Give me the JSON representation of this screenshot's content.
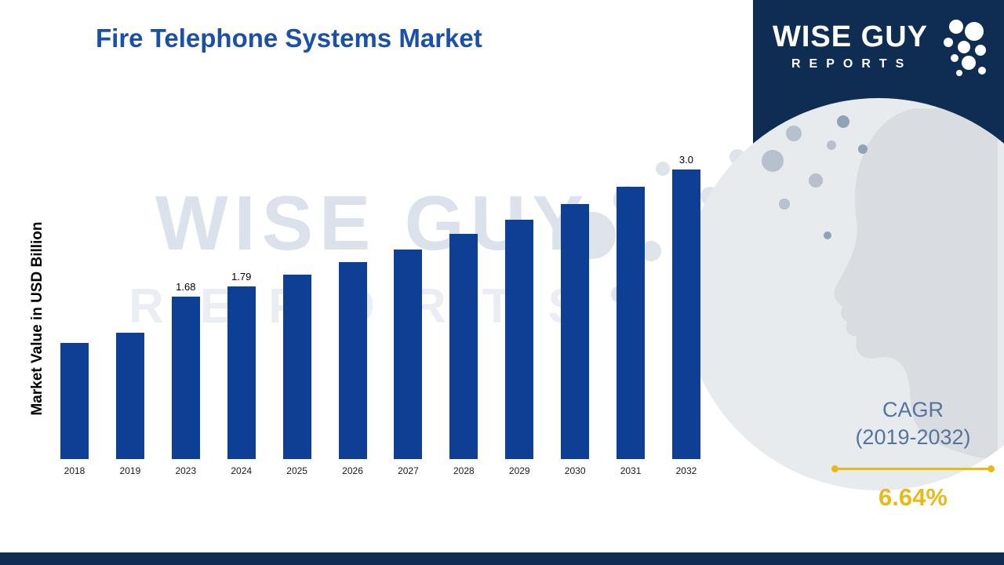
{
  "title": "Fire Telephone Systems Market",
  "logo": {
    "line1": "WISE GUY",
    "line2": "REPORTS"
  },
  "watermark": {
    "line1": "WISE GUY",
    "line2": "REPORTS"
  },
  "cagr": {
    "label": "CAGR",
    "range": "(2019-2032)",
    "value": "6.64%"
  },
  "chart_data": {
    "type": "bar",
    "title": "Fire Telephone Systems Market",
    "ylabel": "Market Value in USD Billion",
    "xlabel": "",
    "categories": [
      "2018",
      "2019",
      "2023",
      "2024",
      "2025",
      "2026",
      "2027",
      "2028",
      "2029",
      "2030",
      "2031",
      "2032"
    ],
    "values": [
      1.2,
      1.31,
      1.68,
      1.79,
      1.91,
      2.04,
      2.17,
      2.33,
      2.48,
      2.64,
      2.82,
      3.0
    ],
    "bar_labels": [
      "",
      "",
      "1.68",
      "1.79",
      "",
      "",
      "",
      "",
      "",
      "",
      "",
      "3.0"
    ],
    "unit": "USD Billion",
    "ylim": [
      0,
      3.2
    ],
    "grid": false,
    "legend": false,
    "bar_color": "#0d4094"
  },
  "colors": {
    "navy": "#0f2d52",
    "gold": "#e9ba17",
    "title_blue": "#1b50a8",
    "bar_blue": "#0d4094",
    "slate": "#54749e",
    "circle_gray": "#e8ebee"
  }
}
